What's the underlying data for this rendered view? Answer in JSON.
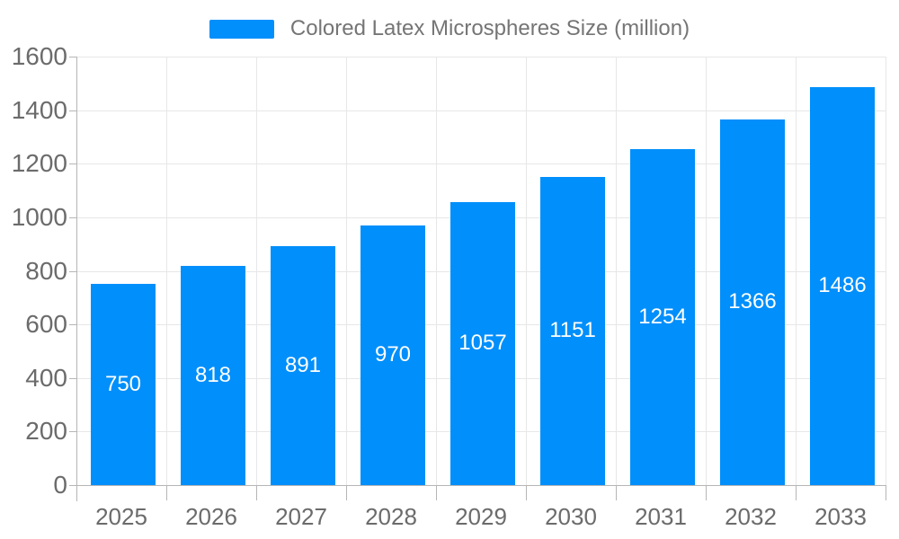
{
  "legend": {
    "label": "Colored Latex Microspheres Size (million)"
  },
  "chart_data": {
    "type": "bar",
    "title": "Colored Latex Microspheres Size (million)",
    "categories": [
      "2025",
      "2026",
      "2027",
      "2028",
      "2029",
      "2030",
      "2031",
      "2032",
      "2033"
    ],
    "values": [
      750,
      818,
      891,
      970,
      1057,
      1151,
      1254,
      1366,
      1486
    ],
    "series_name": "Colored Latex Microspheres Size (million)",
    "xlabel": "",
    "ylabel": "",
    "ylim": [
      0,
      1600
    ],
    "ytick_step": 200,
    "yticks": [
      0,
      200,
      400,
      600,
      800,
      1000,
      1200,
      1400,
      1600
    ],
    "grid": true,
    "legend_position": "top",
    "data_labels": "inside-center"
  },
  "colors": {
    "bar": "#008FFB",
    "grid_line": "#e7e7e7",
    "axis_line": "#b6b6b6",
    "axis_label": "#6b6b6b",
    "legend_label": "#757575",
    "data_label": "#ffffff",
    "background": "#ffffff"
  }
}
